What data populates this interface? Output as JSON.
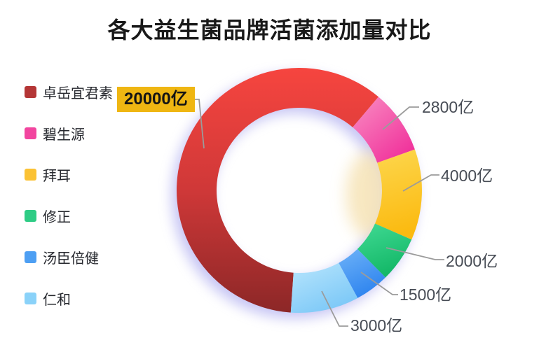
{
  "title": "各大益生菌品牌活菌添加量对比",
  "legend": {
    "items": [
      {
        "label": "卓岳宜君素",
        "color": "#b43636"
      },
      {
        "label": "碧生源",
        "color": "#f2459f"
      },
      {
        "label": "拜耳",
        "color": "#fbc234"
      },
      {
        "label": "修正",
        "color": "#2ecc85"
      },
      {
        "label": "汤臣倍健",
        "color": "#4d9ff3"
      },
      {
        "label": "仁和",
        "color": "#8ad2f9"
      }
    ]
  },
  "chart_data": {
    "type": "pie",
    "subtype": "donut",
    "title": "各大益生菌品牌活菌添加量对比",
    "unit": "亿",
    "categories": [
      "卓岳宜君素",
      "碧生源",
      "拜耳",
      "修正",
      "汤臣倍健",
      "仁和"
    ],
    "values": [
      20000,
      2800,
      4000,
      2000,
      1500,
      3000
    ],
    "labels": [
      "20000亿",
      "2800亿",
      "4000亿",
      "2000亿",
      "1500亿",
      "3000亿"
    ],
    "legend_position": "left",
    "start_angle_deg": 184,
    "highlight": {
      "index": 0,
      "bg": "#efb612",
      "text_color": "#141414"
    },
    "value_label_color": "#474c55",
    "leader_line_color": "#9b9b9b",
    "glow_color": "#8f8ce9",
    "inner_glow_color": "#f6e3b6",
    "slice_gradients": [
      [
        [
          "0",
          "#f6453f"
        ],
        [
          "0.5",
          "#cf3838"
        ],
        [
          "1",
          "#8c2727"
        ]
      ],
      [
        [
          "0",
          "#f98ec3"
        ],
        [
          "1",
          "#f02f9a"
        ]
      ],
      [
        [
          "0",
          "#fdd74e"
        ],
        [
          "1",
          "#fbba10"
        ]
      ],
      [
        [
          "0",
          "#41da94"
        ],
        [
          "1",
          "#14b868"
        ]
      ],
      [
        [
          "0",
          "#6fb3f8"
        ],
        [
          "1",
          "#2f85ef"
        ]
      ],
      [
        [
          "0",
          "#b9e6fd"
        ],
        [
          "1",
          "#7cc8f7"
        ]
      ]
    ]
  }
}
